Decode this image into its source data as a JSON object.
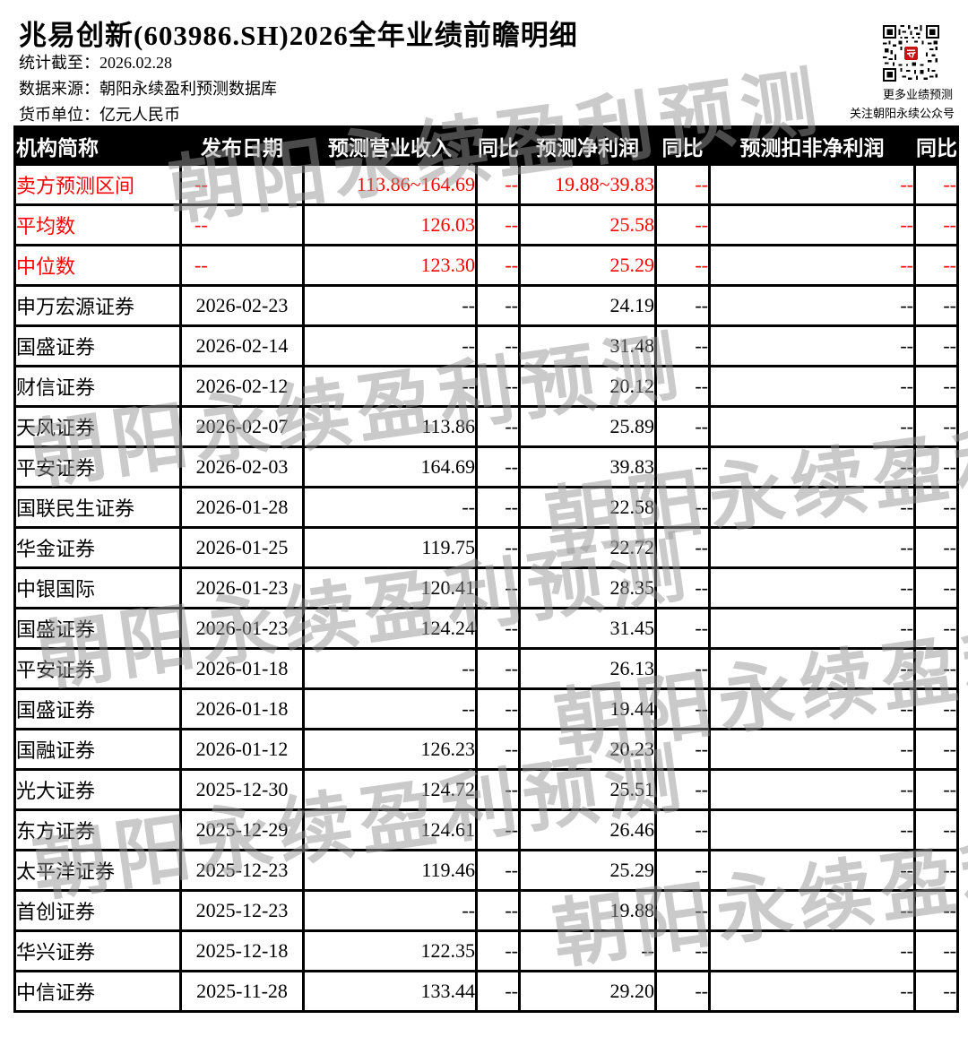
{
  "header": {
    "title": "兆易创新(603986.SH)2026全年业绩前瞻明细",
    "meta": [
      "统计截至：2026.02.28",
      "数据来源：朝阳永续盈利预测数据库",
      "货币单位：亿元人民币"
    ],
    "qr": {
      "caption1": "更多业绩预测",
      "caption2": "关注朝阳永续公众号"
    }
  },
  "watermark": {
    "text": "朝阳永续盈利预测"
  },
  "colors": {
    "summary_text": "#ff0000",
    "header_bg": "#000000",
    "header_text": "#ffffff",
    "qr_logo": "#cc1111"
  },
  "table": {
    "columns": [
      "机构简称",
      "发布日期",
      "预测营业收入",
      "同比",
      "预测净利润",
      "同比",
      "预测扣非净利润",
      "同比"
    ],
    "summary_rows": [
      {
        "institution": "卖方预测区间",
        "publish_date": "--",
        "revenue": "113.86~164.69",
        "revenue_yoy": "--",
        "net_profit": "19.88~39.83",
        "net_profit_yoy": "--",
        "ex_net_profit": "--",
        "ex_net_profit_yoy": "--"
      },
      {
        "institution": "平均数",
        "publish_date": "--",
        "revenue": "126.03",
        "revenue_yoy": "--",
        "net_profit": "25.58",
        "net_profit_yoy": "--",
        "ex_net_profit": "--",
        "ex_net_profit_yoy": "--"
      },
      {
        "institution": "中位数",
        "publish_date": "--",
        "revenue": "123.30",
        "revenue_yoy": "--",
        "net_profit": "25.29",
        "net_profit_yoy": "--",
        "ex_net_profit": "--",
        "ex_net_profit_yoy": "--"
      }
    ],
    "rows": [
      {
        "institution": "申万宏源证券",
        "publish_date": "2026-02-23",
        "revenue": "--",
        "revenue_yoy": "--",
        "net_profit": "24.19",
        "net_profit_yoy": "--",
        "ex_net_profit": "--",
        "ex_net_profit_yoy": "--"
      },
      {
        "institution": "国盛证券",
        "publish_date": "2026-02-14",
        "revenue": "--",
        "revenue_yoy": "--",
        "net_profit": "31.48",
        "net_profit_yoy": "--",
        "ex_net_profit": "--",
        "ex_net_profit_yoy": "--"
      },
      {
        "institution": "财信证券",
        "publish_date": "2026-02-12",
        "revenue": "--",
        "revenue_yoy": "--",
        "net_profit": "20.12",
        "net_profit_yoy": "--",
        "ex_net_profit": "--",
        "ex_net_profit_yoy": "--"
      },
      {
        "institution": "天风证券",
        "publish_date": "2026-02-07",
        "revenue": "113.86",
        "revenue_yoy": "--",
        "net_profit": "25.89",
        "net_profit_yoy": "--",
        "ex_net_profit": "--",
        "ex_net_profit_yoy": "--"
      },
      {
        "institution": "平安证券",
        "publish_date": "2026-02-03",
        "revenue": "164.69",
        "revenue_yoy": "--",
        "net_profit": "39.83",
        "net_profit_yoy": "--",
        "ex_net_profit": "--",
        "ex_net_profit_yoy": "--"
      },
      {
        "institution": "国联民生证券",
        "publish_date": "2026-01-28",
        "revenue": "--",
        "revenue_yoy": "--",
        "net_profit": "22.58",
        "net_profit_yoy": "--",
        "ex_net_profit": "--",
        "ex_net_profit_yoy": "--"
      },
      {
        "institution": "华金证券",
        "publish_date": "2026-01-25",
        "revenue": "119.75",
        "revenue_yoy": "--",
        "net_profit": "22.72",
        "net_profit_yoy": "--",
        "ex_net_profit": "--",
        "ex_net_profit_yoy": "--"
      },
      {
        "institution": "中银国际",
        "publish_date": "2026-01-23",
        "revenue": "120.41",
        "revenue_yoy": "--",
        "net_profit": "28.35",
        "net_profit_yoy": "--",
        "ex_net_profit": "--",
        "ex_net_profit_yoy": "--"
      },
      {
        "institution": "国盛证券",
        "publish_date": "2026-01-23",
        "revenue": "124.24",
        "revenue_yoy": "--",
        "net_profit": "31.45",
        "net_profit_yoy": "--",
        "ex_net_profit": "--",
        "ex_net_profit_yoy": "--"
      },
      {
        "institution": "平安证券",
        "publish_date": "2026-01-18",
        "revenue": "--",
        "revenue_yoy": "--",
        "net_profit": "26.13",
        "net_profit_yoy": "--",
        "ex_net_profit": "--",
        "ex_net_profit_yoy": "--"
      },
      {
        "institution": "国盛证券",
        "publish_date": "2026-01-18",
        "revenue": "--",
        "revenue_yoy": "--",
        "net_profit": "19.44",
        "net_profit_yoy": "--",
        "ex_net_profit": "--",
        "ex_net_profit_yoy": "--"
      },
      {
        "institution": "国融证券",
        "publish_date": "2026-01-12",
        "revenue": "126.23",
        "revenue_yoy": "--",
        "net_profit": "20.23",
        "net_profit_yoy": "--",
        "ex_net_profit": "--",
        "ex_net_profit_yoy": "--"
      },
      {
        "institution": "光大证券",
        "publish_date": "2025-12-30",
        "revenue": "124.72",
        "revenue_yoy": "--",
        "net_profit": "25.51",
        "net_profit_yoy": "--",
        "ex_net_profit": "--",
        "ex_net_profit_yoy": "--"
      },
      {
        "institution": "东方证券",
        "publish_date": "2025-12-29",
        "revenue": "124.61",
        "revenue_yoy": "--",
        "net_profit": "26.46",
        "net_profit_yoy": "--",
        "ex_net_profit": "--",
        "ex_net_profit_yoy": "--"
      },
      {
        "institution": "太平洋证券",
        "publish_date": "2025-12-23",
        "revenue": "119.46",
        "revenue_yoy": "--",
        "net_profit": "25.29",
        "net_profit_yoy": "--",
        "ex_net_profit": "--",
        "ex_net_profit_yoy": "--"
      },
      {
        "institution": "首创证券",
        "publish_date": "2025-12-23",
        "revenue": "--",
        "revenue_yoy": "--",
        "net_profit": "19.88",
        "net_profit_yoy": "--",
        "ex_net_profit": "--",
        "ex_net_profit_yoy": "--"
      },
      {
        "institution": "华兴证券",
        "publish_date": "2025-12-18",
        "revenue": "122.35",
        "revenue_yoy": "--",
        "net_profit": "--",
        "net_profit_yoy": "--",
        "ex_net_profit": "--",
        "ex_net_profit_yoy": "--"
      },
      {
        "institution": "中信证券",
        "publish_date": "2025-11-28",
        "revenue": "133.44",
        "revenue_yoy": "--",
        "net_profit": "29.20",
        "net_profit_yoy": "--",
        "ex_net_profit": "--",
        "ex_net_profit_yoy": "--"
      }
    ]
  }
}
